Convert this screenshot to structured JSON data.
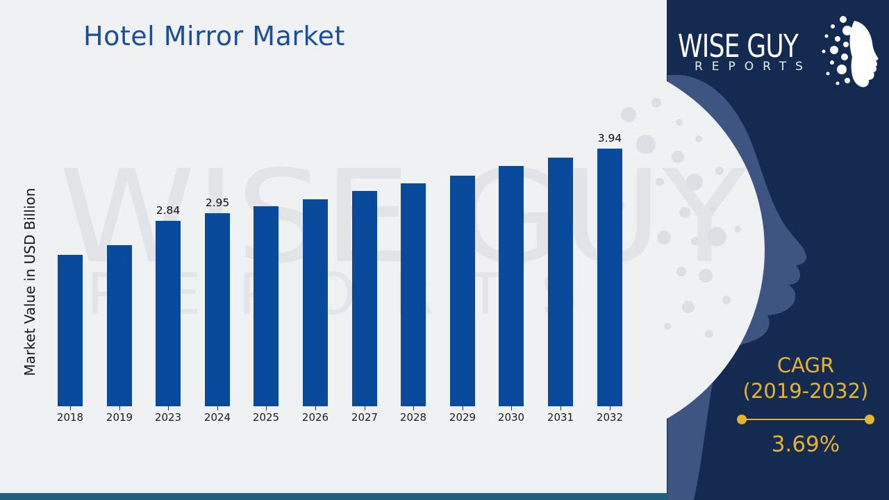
{
  "title": "Hotel Mirror Market",
  "y_axis_label": "Market Value in USD Billion",
  "logo": {
    "name": "WISE GUY",
    "sub": "REPORTS",
    "face_icon": "face-profile-dots-icon"
  },
  "watermark": {
    "line1": "WISE GUY",
    "line2": "REPORTS"
  },
  "cagr": {
    "heading": "CAGR",
    "range": "(2019-2032)",
    "value": "3.69%"
  },
  "colors": {
    "background": "#f0f1f2",
    "title_blue": "#1b4d9e",
    "bar_blue": "#0a4a9c",
    "panel_navy": "#152a50",
    "face_silhouette": "#3d5580",
    "gold": "#e4b42c",
    "teal_bottom_bar": "#215f7d",
    "watermark_gray": "#e2e4e8"
  },
  "chart_data": {
    "type": "bar",
    "title": "Hotel Mirror Market",
    "xlabel": "",
    "ylabel": "Market Value in USD Billion",
    "unit": "USD Billion",
    "categories": [
      "2018",
      "2019",
      "2023",
      "2024",
      "2025",
      "2026",
      "2027",
      "2028",
      "2029",
      "2030",
      "2031",
      "2032"
    ],
    "values": [
      2.31,
      2.46,
      2.84,
      2.95,
      3.06,
      3.17,
      3.29,
      3.41,
      3.53,
      3.67,
      3.8,
      3.94
    ],
    "data_labels": [
      "",
      "",
      "2.84",
      "2.95",
      "",
      "",
      "",
      "",
      "",
      "",
      "",
      "3.94"
    ],
    "ylim": [
      0,
      4.2
    ],
    "grid": false,
    "legend": false,
    "bar_color": "#0a4a9c"
  }
}
